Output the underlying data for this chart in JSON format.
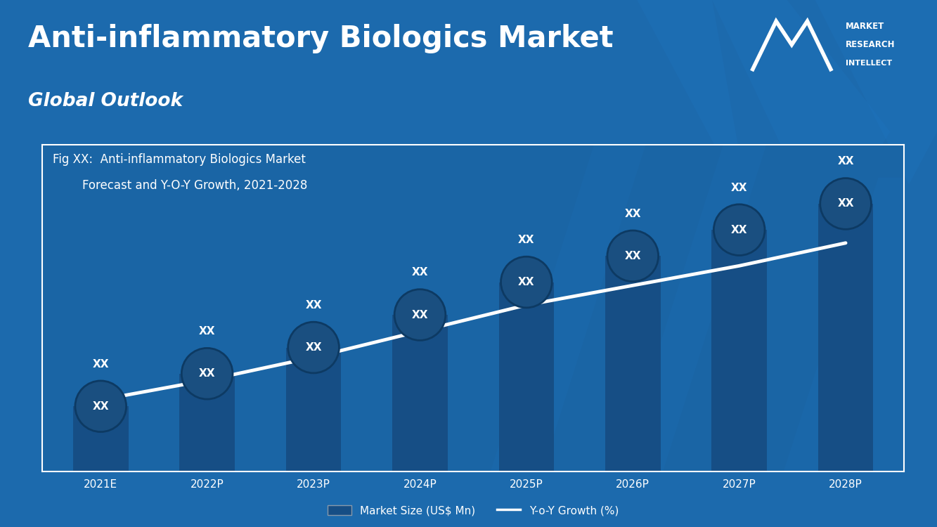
{
  "title": "Anti-inflammatory Biologics Market",
  "subtitle": "Global Outlook",
  "fig_label_line1": "Fig XX:  Anti-inflammatory Biologics Market",
  "fig_label_line2": "        Forecast and Y-O-Y Growth, 2021-2028",
  "categories": [
    "2021E",
    "2022P",
    "2023P",
    "2024P",
    "2025P",
    "2026P",
    "2027P",
    "2028P"
  ],
  "bar_values": [
    20,
    30,
    38,
    48,
    58,
    66,
    74,
    82
  ],
  "line_values": [
    22,
    28,
    35,
    43,
    51,
    57,
    63,
    70
  ],
  "bar_legend": "Market Size (US$ Mn)",
  "line_legend": "Y-o-Y Growth (%)",
  "outer_bg_color": "#1c6aad",
  "chart_bg_color": "#1a65a5",
  "bar_color": "#164e85",
  "circle_fill_color": "#1a4f80",
  "circle_border_color": "#0d3a63",
  "line_color": "#ffffff",
  "text_color": "#ffffff",
  "title_fontsize": 30,
  "subtitle_fontsize": 19,
  "axis_label_fontsize": 11,
  "bar_label_fontsize": 11,
  "legend_fontsize": 11,
  "fig_label_fontsize": 12
}
